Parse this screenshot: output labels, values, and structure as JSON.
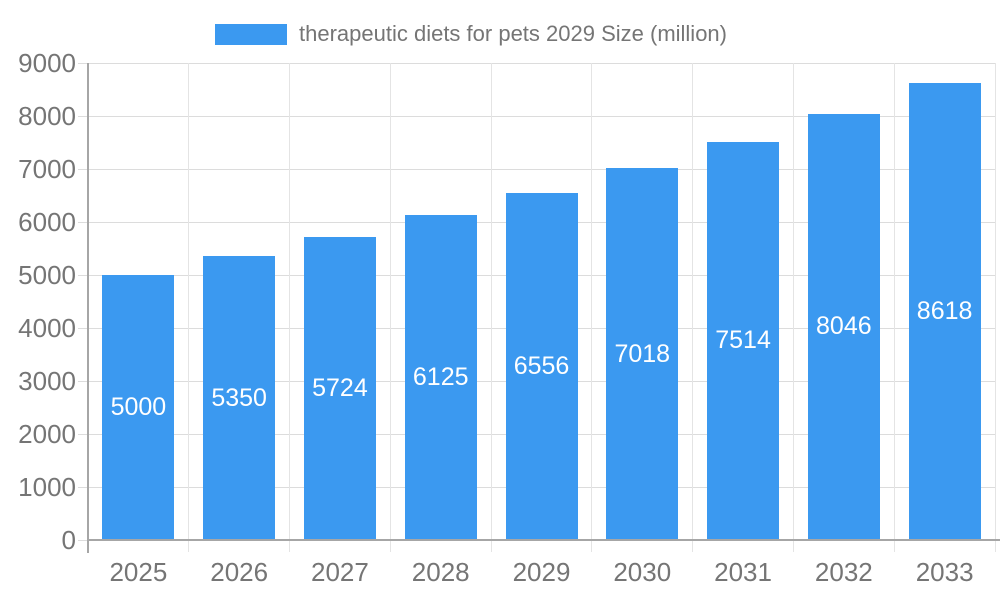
{
  "legend": {
    "label": "therapeutic diets for pets 2029 Size (million)",
    "swatch_color": "#3B99F0"
  },
  "chart_data": {
    "type": "bar",
    "title": "",
    "xlabel": "",
    "ylabel": "",
    "categories": [
      "2025",
      "2026",
      "2027",
      "2028",
      "2029",
      "2030",
      "2031",
      "2032",
      "2033"
    ],
    "values": [
      5000,
      5350,
      5724,
      6125,
      6556,
      7018,
      7514,
      8046,
      8618
    ],
    "series_name": "therapeutic diets for pets 2029 Size (million)",
    "ylim": [
      0,
      9000
    ],
    "ytick_step": 1000,
    "yticks": [
      0,
      1000,
      2000,
      3000,
      4000,
      5000,
      6000,
      7000,
      8000,
      9000
    ],
    "grid": true,
    "legend_position": "top",
    "bar_label_position": "inside-center",
    "colors": {
      "bar": "#3B99F0",
      "bar_label": "#FFFFFF",
      "axis_text": "#757575",
      "hgrid": "#DCDCDC",
      "vgrid": "#E4E4E4",
      "axis_line": "#A6A6A6"
    }
  }
}
